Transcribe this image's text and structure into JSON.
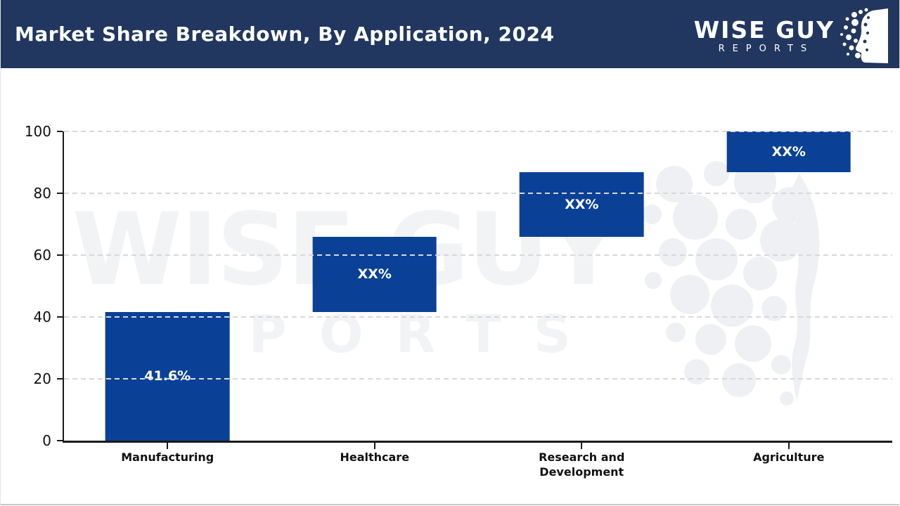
{
  "header": {
    "brand_line1": "WISE GUY",
    "brand_line2": "REPORTS",
    "bg_color": "#21375f"
  },
  "watermark": {
    "line1": "WISE GUY",
    "line2": "REPORTS"
  },
  "chart_data": {
    "type": "bar",
    "subtype": "floating-waterfall",
    "title": "Market Share Breakdown, By Application, 2024",
    "categories": [
      "Manufacturing",
      "Healthcare",
      "Research and\nDevelopment",
      "Agriculture"
    ],
    "segments": [
      {
        "category": "Manufacturing",
        "start": 0,
        "end": 41.6,
        "label": "41.6%"
      },
      {
        "category": "Healthcare",
        "start": 41.6,
        "end": 66.0,
        "label": "XX%"
      },
      {
        "category": "Research and Development",
        "start": 66.0,
        "end": 86.8,
        "label": "XX%"
      },
      {
        "category": "Agriculture",
        "start": 86.8,
        "end": 100.0,
        "label": "XX%"
      }
    ],
    "xlabel": "",
    "ylabel": "",
    "ylim": [
      0,
      100
    ],
    "yticks": [
      0,
      20,
      40,
      60,
      80,
      100
    ],
    "grid": {
      "horizontal": true,
      "style": "dashed",
      "color": "#d8d8d8",
      "drawn_over_bars": true
    },
    "legend": "none",
    "bar_color": "#0a4197",
    "bar_label_color": "#ffffff",
    "axis_color": "#1a1a1a",
    "tick_label_color": "#111111"
  }
}
